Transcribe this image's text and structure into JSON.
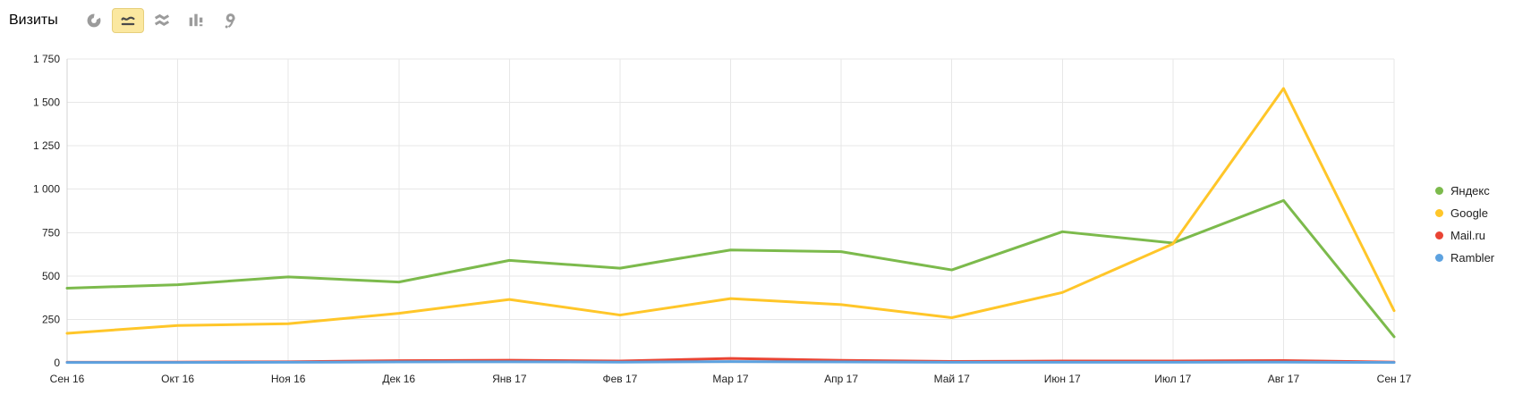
{
  "header": {
    "title": "Визиты",
    "toolbar": [
      {
        "icon": "pie-chart-icon",
        "selected": false
      },
      {
        "icon": "line-chart-icon",
        "selected": true
      },
      {
        "icon": "stacked-area-chart-icon",
        "selected": false
      },
      {
        "icon": "column-chart-icon",
        "selected": false
      },
      {
        "icon": "map-pin-icon",
        "selected": false
      }
    ],
    "selected_highlight_color": "#fbe8a0"
  },
  "chart_data": {
    "type": "line",
    "title": "Визиты",
    "categories": [
      "Сен 16",
      "Окт 16",
      "Ноя 16",
      "Дек 16",
      "Янв 17",
      "Фев 17",
      "Мар 17",
      "Апр 17",
      "Май 17",
      "Июн 17",
      "Июл 17",
      "Авг 17",
      "Сен 17"
    ],
    "series": [
      {
        "name": "Яндекс",
        "color": "#7cba4c",
        "values": [
          430,
          450,
          495,
          465,
          590,
          545,
          650,
          640,
          535,
          755,
          690,
          935,
          150
        ]
      },
      {
        "name": "Google",
        "color": "#ffc629",
        "values": [
          170,
          215,
          225,
          285,
          365,
          275,
          370,
          335,
          260,
          405,
          685,
          1580,
          300
        ]
      },
      {
        "name": "Mail.ru",
        "color": "#e94434",
        "values": [
          3,
          4,
          6,
          12,
          15,
          10,
          25,
          14,
          8,
          10,
          10,
          13,
          4
        ]
      },
      {
        "name": "Rambler",
        "color": "#5da2e0",
        "values": [
          2,
          2,
          3,
          5,
          6,
          4,
          7,
          5,
          3,
          3,
          3,
          4,
          2
        ]
      }
    ],
    "xlabel": "",
    "ylabel": "",
    "ylim": [
      0,
      1750
    ],
    "y_ticks": [
      {
        "value": 0,
        "label": "0"
      },
      {
        "value": 250,
        "label": "250"
      },
      {
        "value": 500,
        "label": "500"
      },
      {
        "value": 750,
        "label": "750"
      },
      {
        "value": 1000,
        "label": "1 000"
      },
      {
        "value": 1250,
        "label": "1 250"
      },
      {
        "value": 1500,
        "label": "1 500"
      },
      {
        "value": 1750,
        "label": "1 750"
      }
    ],
    "grid": true,
    "legend_position": "right",
    "gridline_color": "#e7e7e7",
    "axis_line_color": "#d3d3d3",
    "axis_label_color": "#222222"
  }
}
